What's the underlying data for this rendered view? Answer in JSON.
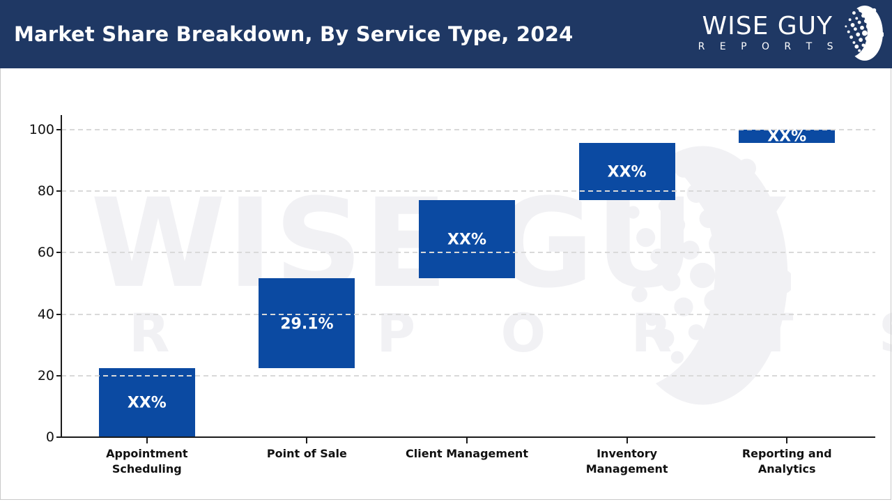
{
  "header": {
    "title": "Market Share Breakdown, By Service Type, 2024",
    "logo": {
      "line1": "WISE GUY",
      "line2": "R E P O R T S",
      "icon": "dotted-face-profile"
    }
  },
  "watermark": {
    "line1": "WISE GUY",
    "line2": "R E P O R T S"
  },
  "chart_data": {
    "type": "bar",
    "subtype": "floating-waterfall",
    "title": "Market Share Breakdown, By Service Type, 2024",
    "categories": [
      "Appointment Scheduling",
      "Point of Sale",
      "Client Management",
      "Inventory Management",
      "Reporting and Analytics"
    ],
    "category_lines": [
      [
        "Appointment",
        "Scheduling"
      ],
      [
        "Point of Sale"
      ],
      [
        "Client Management"
      ],
      [
        "Inventory",
        "Management"
      ],
      [
        "Reporting and",
        "Analytics"
      ]
    ],
    "bars": [
      {
        "category": "Appointment Scheduling",
        "start": 0,
        "end": 22.5,
        "label": "XX%"
      },
      {
        "category": "Point of Sale",
        "start": 22.5,
        "end": 51.6,
        "label": "29.1%"
      },
      {
        "category": "Client Management",
        "start": 51.6,
        "end": 77.1,
        "label": "XX%"
      },
      {
        "category": "Inventory Management",
        "start": 77.1,
        "end": 95.7,
        "label": "XX%"
      },
      {
        "category": "Reporting and Analytics",
        "start": 95.7,
        "end": 100,
        "label": "XX%"
      }
    ],
    "yticks": [
      0,
      20,
      40,
      60,
      80,
      100
    ],
    "ylim": [
      0,
      105
    ],
    "xlabel": "",
    "ylabel": "",
    "grid": "horizontal-dashed",
    "legend": "none",
    "colors": {
      "bar": "#0b4aa2",
      "bar_label": "#ffffff",
      "grid": "#d9d9d9",
      "axis": "#1a1a1a",
      "tick_label": "#111111",
      "header_bg": "#1f3864",
      "header_text": "#ffffff",
      "watermark": "#f1f1f4"
    }
  }
}
